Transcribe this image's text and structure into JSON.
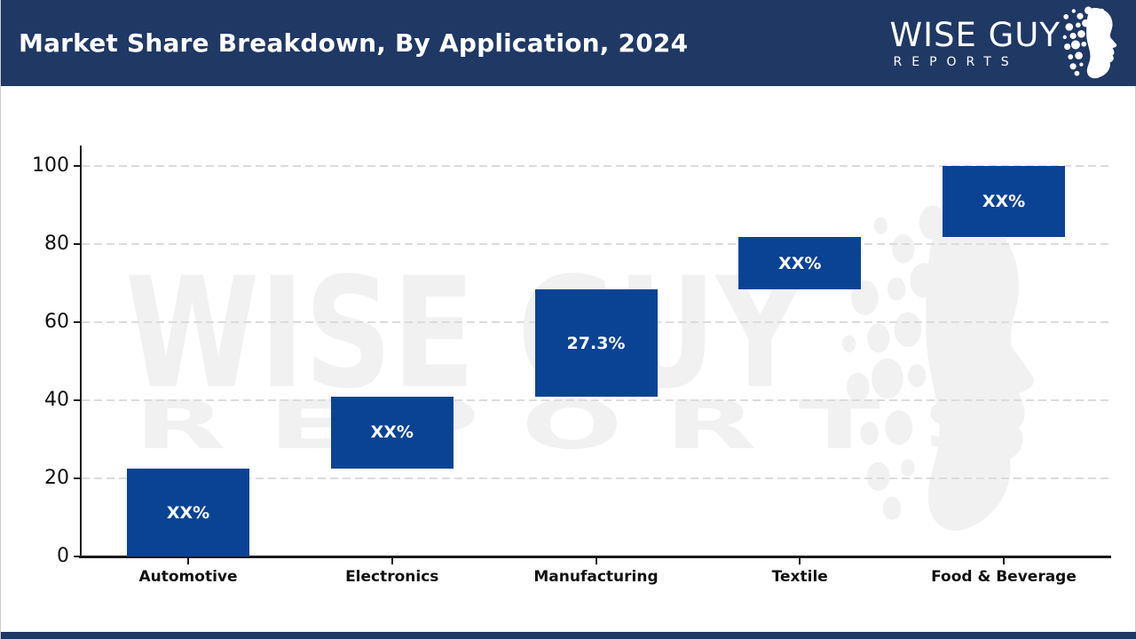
{
  "header": {
    "title": "Market Share Breakdown, By Application, 2024",
    "bg_color": "#1f3864",
    "text_color": "#ffffff"
  },
  "logo": {
    "line1": "WISE GUY",
    "line2": "REPORTS"
  },
  "watermark": {
    "line1": "WISE GUY",
    "line2": "R E P O R T S",
    "color": "#f1f1f1"
  },
  "chart_data": {
    "type": "bar",
    "subtype": "waterfall",
    "title": "Market Share Breakdown, By Application, 2024",
    "categories": [
      "Automotive",
      "Electronics",
      "Manufacturing",
      "Textile",
      "Food & Beverage"
    ],
    "segments": [
      {
        "category": "Automotive",
        "start": 0,
        "end": 22.5,
        "label": "XX%"
      },
      {
        "category": "Electronics",
        "start": 22.5,
        "end": 41,
        "label": "XX%"
      },
      {
        "category": "Manufacturing",
        "start": 41,
        "end": 68.3,
        "label": "27.3%"
      },
      {
        "category": "Textile",
        "start": 68.3,
        "end": 81.8,
        "label": "XX%"
      },
      {
        "category": "Food & Beverage",
        "start": 81.8,
        "end": 100,
        "label": "XX%"
      }
    ],
    "yticks": [
      0,
      20,
      40,
      60,
      80,
      100
    ],
    "ylim": [
      0,
      105
    ],
    "xlabel": "",
    "ylabel": "",
    "grid": "horizontal-dashed",
    "legend": "none",
    "bar_color": "#0a4394",
    "bar_label_color": "#ffffff",
    "axis_color": "#1a1a1a"
  }
}
